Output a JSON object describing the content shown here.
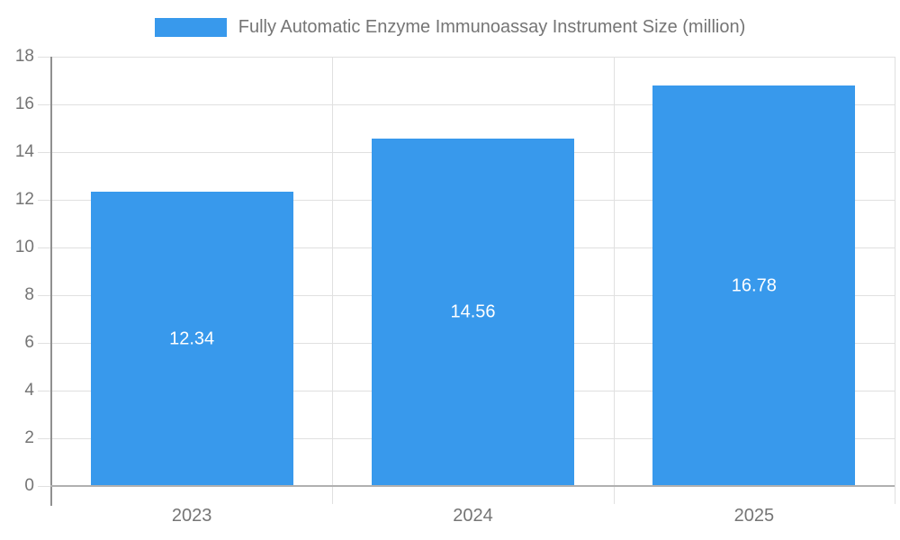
{
  "legend": {
    "label": "Fully Automatic Enzyme Immunoassay Instrument Size (million)"
  },
  "chart_data": {
    "type": "bar",
    "title": "Fully Automatic Enzyme Immunoassay Instrument Size (million)",
    "categories": [
      "2023",
      "2024",
      "2025"
    ],
    "values": [
      12.34,
      14.56,
      16.78
    ],
    "value_labels": [
      "12.34",
      "14.56",
      "16.78"
    ],
    "ylim": [
      0,
      18
    ],
    "ytick_step": 2,
    "ytick_labels": [
      "0",
      "2",
      "4",
      "6",
      "8",
      "10",
      "12",
      "14",
      "16",
      "18"
    ],
    "grid": true,
    "legend_position": "top",
    "colors": {
      "bar": "#3899EC",
      "bar_value_label": "#ffffff",
      "axis_text": "#757575",
      "gridline": "#e0e0e0",
      "y_axis_line": "#909090",
      "x_axis_line": "#b0b0b0"
    }
  }
}
